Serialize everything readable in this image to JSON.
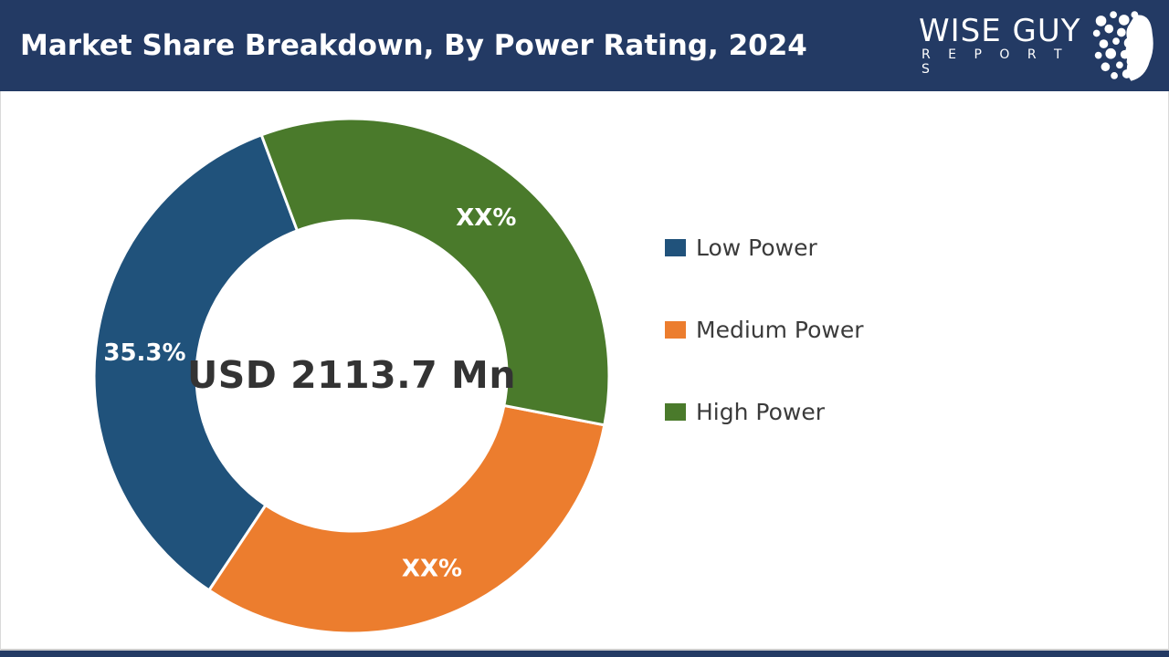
{
  "header": {
    "title": "Market Share Breakdown, By Power Rating, 2024",
    "logo": {
      "line1": "WISE GUY",
      "line2": "REPORTS"
    }
  },
  "chart_data": {
    "type": "pie",
    "subtype": "donut",
    "title": "Market Share Breakdown, By Power Rating, 2024",
    "center_label": "USD 2113.7 Mn",
    "categories": [
      "Low Power",
      "Medium Power",
      "High Power"
    ],
    "values_pct_estimated": [
      35.3,
      31.0,
      33.7
    ],
    "shown_labels": [
      "35.3%",
      "XX%",
      "XX%"
    ],
    "colors": [
      "#20527B",
      "#EC7D2E",
      "#4A7A2B"
    ],
    "legend_position": "right",
    "segments": [
      {
        "name": "Low Power",
        "label": "35.3%",
        "color": "#20527B",
        "start_deg": 110.5,
        "end_deg": 236.4
      },
      {
        "name": "Medium Power",
        "label": "XX%",
        "color": "#EC7D2E",
        "start_deg": 236.4,
        "end_deg": 349.0
      },
      {
        "name": "High Power",
        "label": "XX%",
        "color": "#4A7A2B",
        "start_deg": -11.0,
        "end_deg": 110.5
      }
    ]
  },
  "legend": {
    "items": [
      {
        "label": "Low Power",
        "color": "#20527B"
      },
      {
        "label": "Medium Power",
        "color": "#EC7D2E"
      },
      {
        "label": "High Power",
        "color": "#4A7A2B"
      }
    ]
  },
  "watermark": {
    "line1": "WISE GUY",
    "line2": "REPORTS"
  },
  "colors": {
    "header_bg": "#233A64",
    "bottom_bar": "#233A64",
    "center_text": "#333333",
    "legend_text": "#3b3b3b",
    "watermark": "#f4f4f4",
    "border": "#d9d9d9"
  }
}
